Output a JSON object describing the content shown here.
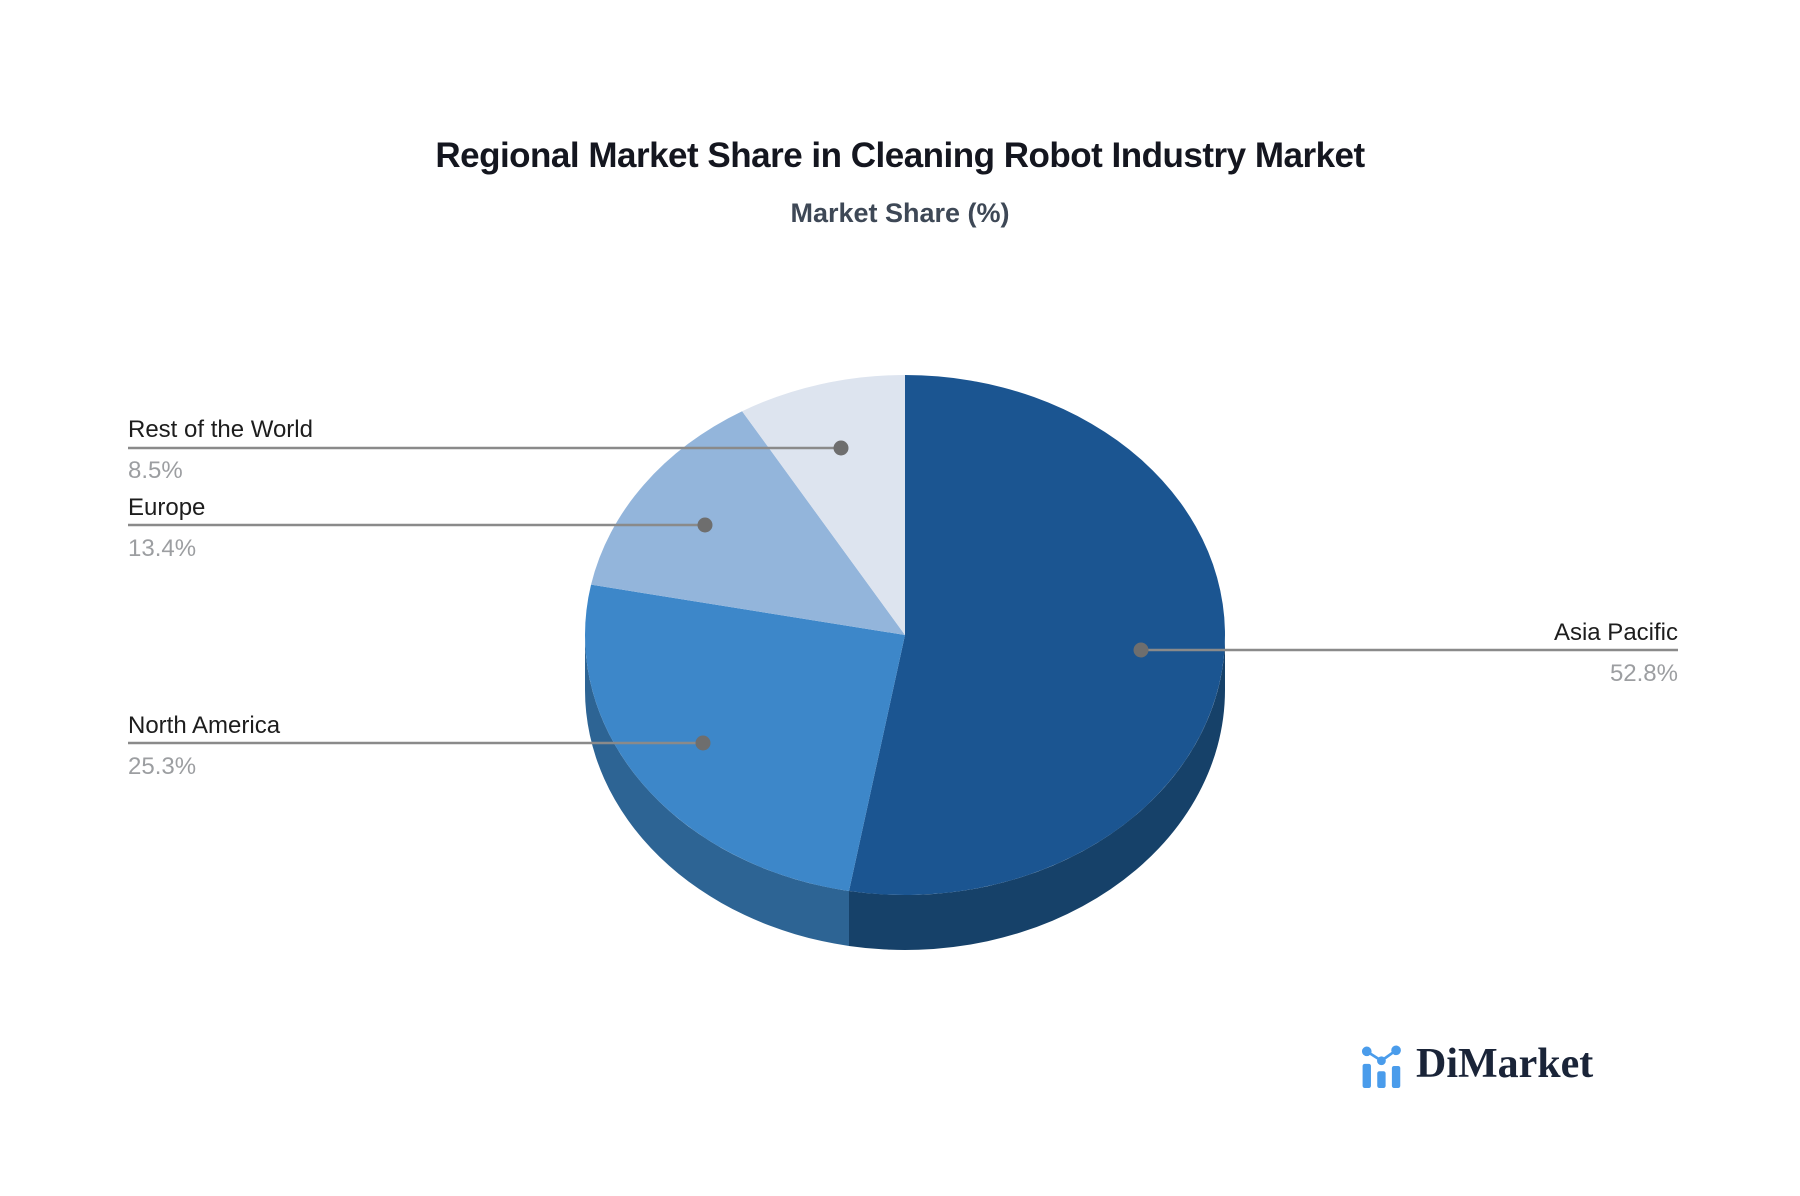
{
  "chart_data": {
    "type": "pie",
    "style": "3d",
    "title": "Regional Market Share in Cleaning Robot Industry Market",
    "subtitle": "Market Share (%)",
    "unit": "%",
    "start_angle": "12-o-clock, clockwise",
    "labels": [
      "Asia Pacific",
      "North America",
      "Europe",
      "Rest of the World"
    ],
    "values": [
      52.8,
      25.3,
      13.4,
      8.5
    ],
    "values_formatted": [
      "52.8%",
      "25.3%",
      "13.4%",
      "8.5%"
    ],
    "colors": [
      "#1b5591",
      "#3d87c9",
      "#93b5db",
      "#dde4ef"
    ],
    "colors_dark": [
      "#164169",
      "#2d6494",
      "#6f93bd",
      "#b9c4d6"
    ],
    "leader_line_color": "#8a8a8a",
    "leader_dot_color": "#6e6e6e",
    "legend": "none"
  },
  "branding": {
    "logo_text": "DiMarket",
    "logo_accent_color": "#4a9ceb",
    "logo_text_color": "#1a2438"
  }
}
